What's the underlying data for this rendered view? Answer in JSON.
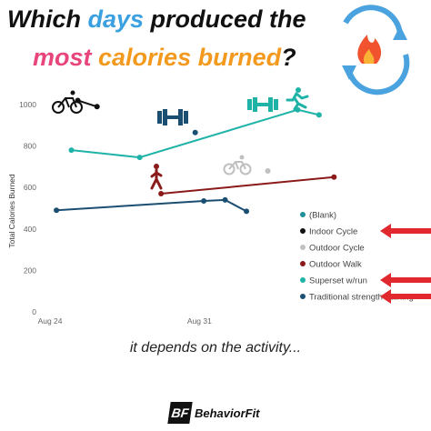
{
  "title": {
    "line1": [
      {
        "text": "Which ",
        "color": "black"
      },
      {
        "text": "days",
        "color": "blue"
      },
      {
        "text": " produced the",
        "color": "black"
      }
    ],
    "line2": [
      {
        "text": "most ",
        "color": "pink"
      },
      {
        "text": "calories burned",
        "color": "orange"
      },
      {
        "text": "?",
        "color": "black"
      }
    ]
  },
  "caption": "it depends on the activity...",
  "brand": {
    "logo": "BF",
    "name": "BehaviorFit"
  },
  "icons": [
    "fire-recycle-icon",
    "cyclist-icon",
    "dumbbell-icon",
    "runner-icon",
    "walker-icon",
    "dumbbell-icon",
    "cyclist-icon",
    "red-arrow-icon"
  ],
  "chart_data": {
    "type": "line",
    "ylabel": "Total Calories Burned",
    "xlabel": "",
    "ylim": [
      0,
      1000
    ],
    "yticks": [
      0,
      200,
      400,
      600,
      800,
      1000
    ],
    "x_ticks": [
      {
        "label": "Aug 24",
        "day": 0
      },
      {
        "label": "Aug 31",
        "day": 7
      }
    ],
    "xlim_days": [
      -0.3,
      13.5
    ],
    "grid": false,
    "legend_position": "right",
    "series": [
      {
        "name": "(Blank)",
        "color": "#1f8f99",
        "points": []
      },
      {
        "name": "Indoor Cycle",
        "color": "#111111",
        "points": [
          [
            1.3,
            1020
          ],
          [
            2.2,
            990
          ]
        ],
        "arrow": true
      },
      {
        "name": "Outdoor Cycle",
        "color": "#c0c0c0",
        "points": [
          [
            10.2,
            680
          ]
        ]
      },
      {
        "name": "Outdoor Walk",
        "color": "#8b1a1a",
        "points": [
          [
            5.2,
            570
          ],
          [
            13.3,
            650
          ]
        ]
      },
      {
        "name": "Superset w/run",
        "color": "#1fb3a8",
        "points": [
          [
            1.0,
            780
          ],
          [
            4.2,
            745
          ],
          [
            11.6,
            975
          ],
          [
            12.6,
            950
          ]
        ],
        "arrow": true
      },
      {
        "name": "Traditional strength training",
        "color": "#1b4f72",
        "points": [
          [
            0.3,
            490
          ],
          [
            7.2,
            535
          ],
          [
            8.2,
            540
          ],
          [
            9.2,
            485
          ]
        ],
        "arrow": true
      },
      {
        "name": "",
        "color": "#1b4f72",
        "points": [
          [
            6.8,
            865
          ]
        ],
        "marker_only": true
      }
    ]
  }
}
